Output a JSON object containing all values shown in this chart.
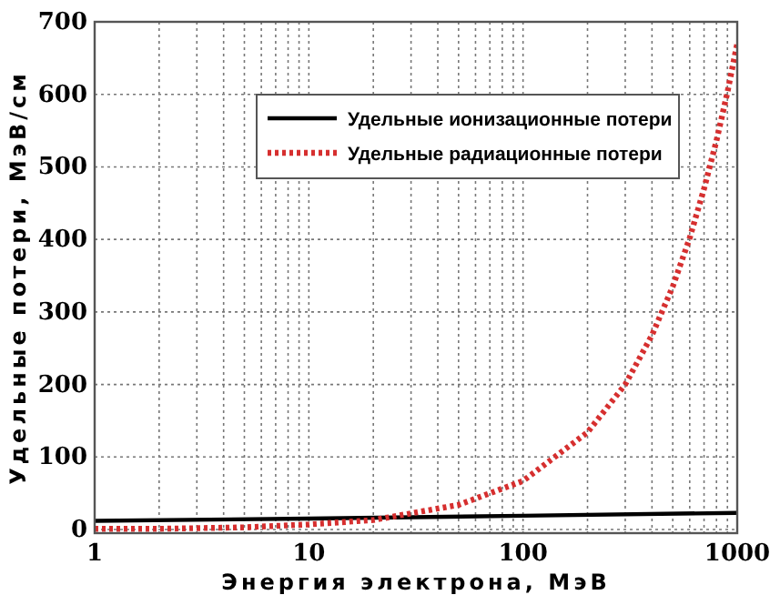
{
  "chart_data": {
    "type": "line",
    "xlabel": "Энергия электрона, МэВ",
    "ylabel": "Удельные потери, МэВ/см",
    "log": "x",
    "xlim": [
      1,
      1000
    ],
    "xticks": [
      1,
      10,
      100,
      1000
    ],
    "ylim": [
      -5,
      700
    ],
    "yticks": [
      0,
      100,
      200,
      300,
      400,
      500,
      600,
      700
    ],
    "grid": true,
    "legend": "top right",
    "series": [
      {
        "name": "Удельные ионизационные потери",
        "color": "#000000",
        "line_style": "solid",
        "x": [
          1,
          10,
          100,
          1000
        ],
        "values": [
          12,
          15,
          19,
          23
        ]
      },
      {
        "name": "Удельные радиационные потери",
        "color": "#d62f2f",
        "line_style": "dotted",
        "x": [
          1,
          2,
          5,
          10,
          20,
          50,
          100,
          200,
          300,
          400,
          500,
          600,
          700,
          800,
          900,
          1000
        ],
        "values": [
          1,
          1,
          3,
          7,
          13,
          34,
          67,
          134,
          200,
          268,
          335,
          402,
          470,
          536,
          603,
          670
        ]
      }
    ]
  }
}
